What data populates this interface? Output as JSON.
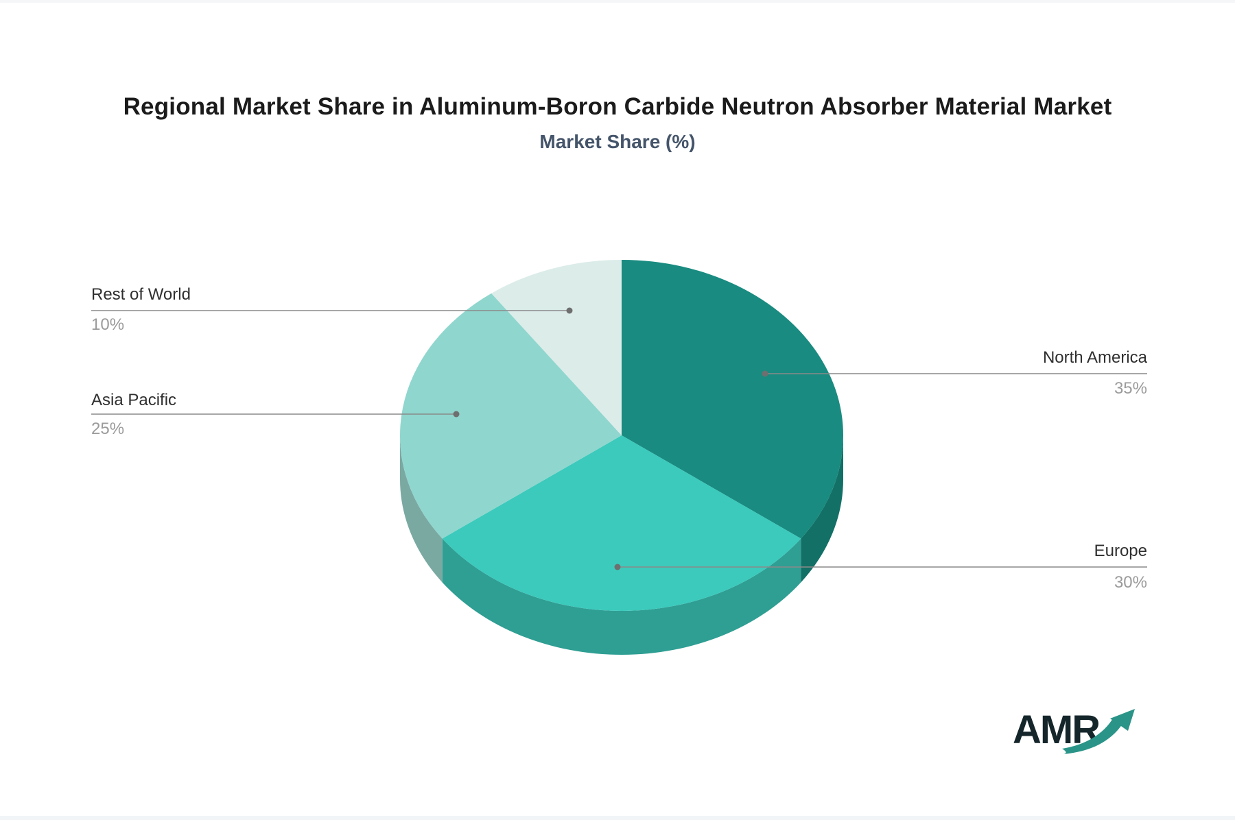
{
  "page": {
    "title": "Regional Market Share in Aluminum-Boron Carbide Neutron Absorber Material Market",
    "subtitle": "Market Share (%)"
  },
  "chart_data": {
    "type": "pie",
    "title": "Regional Market Share in Aluminum-Boron Carbide Neutron Absorber Material Market",
    "subtitle": "Market Share (%)",
    "unit": "%",
    "effect": "3d",
    "start_angle": "12-oclock",
    "direction": "clockwise",
    "legend_position": "none",
    "label_style": "external-callouts",
    "categories": [
      "North America",
      "Europe",
      "Asia Pacific",
      "Rest of World"
    ],
    "values": [
      35,
      30,
      25,
      10
    ],
    "slices": [
      {
        "label": "North America",
        "value": 35,
        "pct_label": "35%",
        "color": "#198b80",
        "side_color": "#127066",
        "callout_side": "right"
      },
      {
        "label": "Europe",
        "value": 30,
        "pct_label": "30%",
        "color": "#3bcabc",
        "side_color": "#2f9e93",
        "callout_side": "right"
      },
      {
        "label": "Asia Pacific",
        "value": 25,
        "pct_label": "25%",
        "color": "#8fd6ce",
        "side_color": "#7aa9a2",
        "callout_side": "left"
      },
      {
        "label": "Rest of World",
        "value": 10,
        "pct_label": "10%",
        "color": "#dbece9",
        "side_color": "#c9dedb",
        "callout_side": "left"
      }
    ],
    "leader_line_color": "#8a8a8a",
    "leader_dot_color": "#6f6f6f",
    "label_text_color": "#2f2f2f",
    "pct_text_color": "#9b9b9b"
  },
  "logo": {
    "text": "AMR",
    "text_color": "#15262b",
    "arrow_color": "#2b9488",
    "icon": "growth-arrow-icon"
  }
}
